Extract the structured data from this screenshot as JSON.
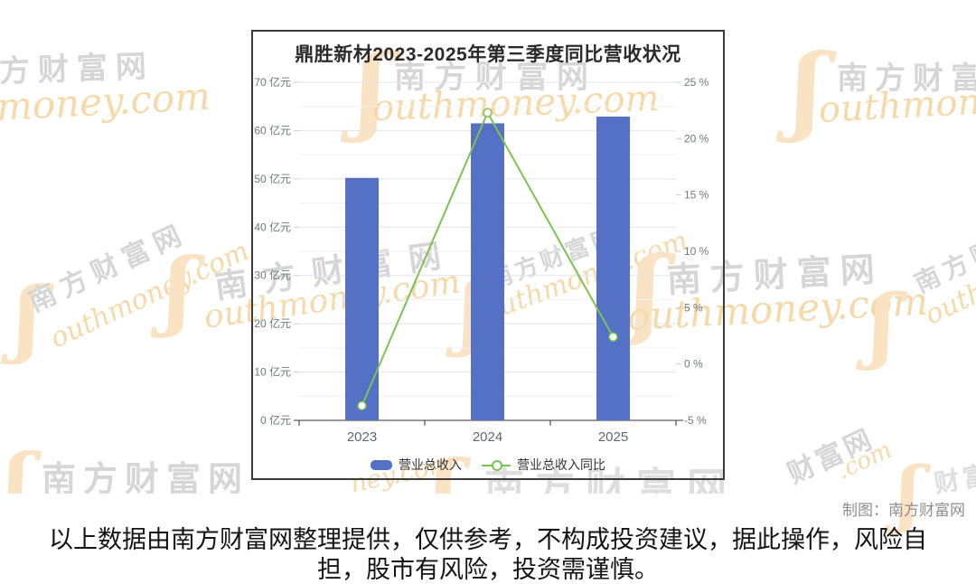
{
  "chart_data": {
    "type": "bar+line",
    "title": "鼎胜新材2023-2025年第三季度同比营收状况",
    "categories": [
      "2023",
      "2024",
      "2025"
    ],
    "series": [
      {
        "name": "营业总收入",
        "type": "bar",
        "axis": "left",
        "unit": "亿元",
        "color": "#5571c5",
        "values": [
          50.2,
          61.5,
          62.9
        ]
      },
      {
        "name": "营业总收入同比",
        "type": "line",
        "axis": "right",
        "unit": "%",
        "color": "#7cc151",
        "values": [
          -3.7,
          22.3,
          2.4
        ]
      }
    ],
    "left_axis": {
      "min": 0,
      "max": 70,
      "step": 10,
      "unit": "亿元"
    },
    "right_axis": {
      "min": -5,
      "max": 25,
      "step": 5,
      "unit": "%"
    },
    "grid": true,
    "legend_position": "bottom"
  },
  "footer": {
    "credit": "制图：南方财富网",
    "disclaimer": "以上数据由南方财富网整理提供，仅供参考，不构成投资建议，据此操作，风险自担，股市有风险，投资需谨慎。"
  },
  "watermark": {
    "s_glyph": "ʃ",
    "site_cn": "南方财富网",
    "site_cn_fragment": "财富网",
    "site_en": "southmoney.com",
    "site_en_fragment_outh": "outhmoney.com",
    "site_en_fragment_money": "money.com",
    "site_en_fragment_ney": "ney.com",
    "site_en_fragment_com": ".com"
  }
}
